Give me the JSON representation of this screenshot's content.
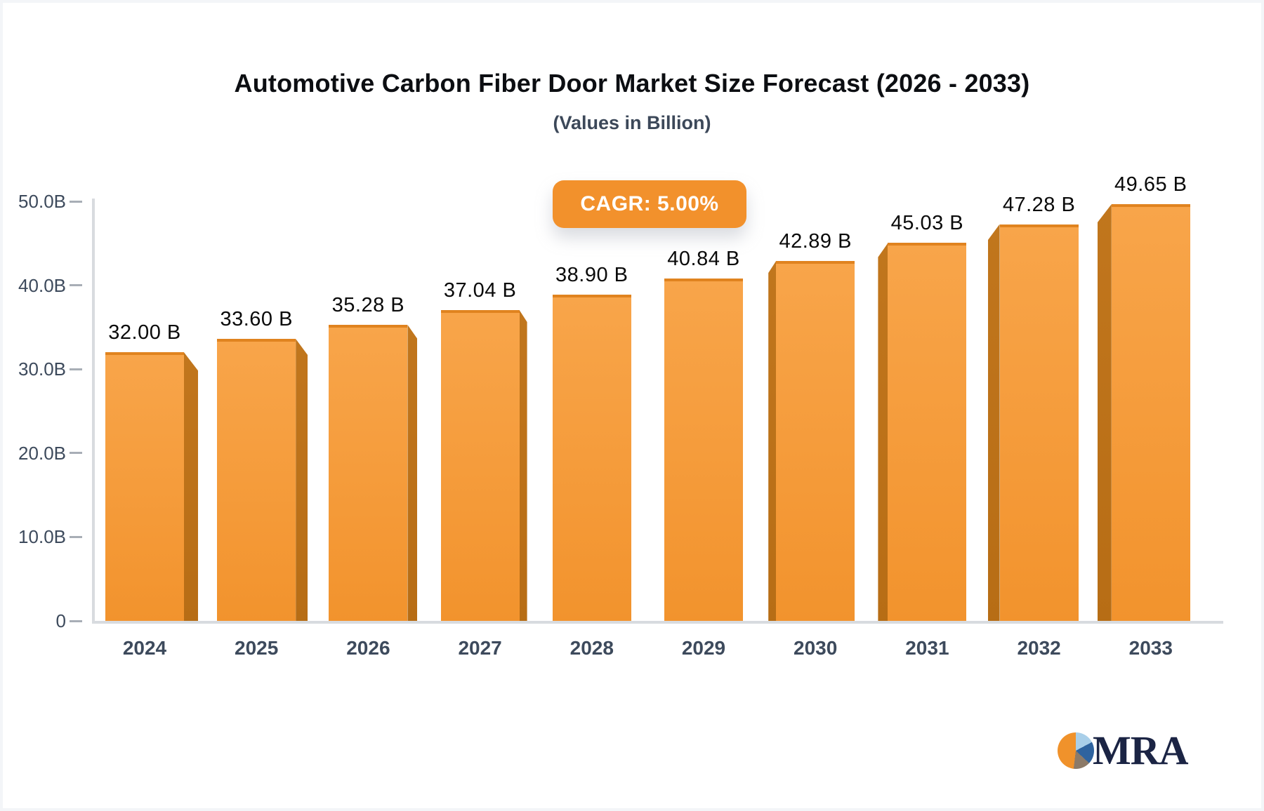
{
  "header": {
    "title": "Automotive Carbon Fiber Door Market Size Forecast (2026 - 2033)",
    "subtitle": "(Values in Billion)"
  },
  "badge": {
    "label": "CAGR: 5.00%",
    "bg": "#f2912c",
    "text_color": "#ffffff"
  },
  "chart_data": {
    "type": "bar",
    "title": "Automotive Carbon Fiber Door Market Size Forecast (2026 - 2033)",
    "subtitle": "(Values in Billion)",
    "categories": [
      "2024",
      "2025",
      "2026",
      "2027",
      "2028",
      "2029",
      "2030",
      "2031",
      "2032",
      "2033"
    ],
    "values": [
      32.0,
      33.6,
      35.28,
      37.04,
      38.9,
      40.84,
      42.89,
      45.03,
      47.28,
      49.65
    ],
    "value_labels": [
      "32.00 B",
      "33.60 B",
      "35.28 B",
      "37.04 B",
      "38.90 B",
      "40.84 B",
      "42.89 B",
      "45.03 B",
      "47.28 B",
      "49.65 B"
    ],
    "ytick_labels": [
      "0",
      "10.0B",
      "20.0B",
      "30.0B",
      "40.0B",
      "50.0B"
    ],
    "ytick_values": [
      0,
      10,
      20,
      30,
      40,
      50
    ],
    "ylim": [
      0,
      50
    ],
    "xlabel": "",
    "ylabel": "",
    "grid": false,
    "legend_position": "none",
    "annotation": "CAGR: 5.00%",
    "colors": {
      "bar_face_top": "#f8a54a",
      "bar_face_bottom": "#f2932d",
      "bar_top_edge": "#e0831f",
      "bar_side_top": "#c1761d",
      "bar_side_bottom": "#b76d15",
      "axis_line": "#d8dbdf",
      "tick_dash": "#a8aeb6",
      "tick_text": "#3d4a5c",
      "value_text": "#0a0a0a"
    }
  },
  "logo": {
    "text": "MRA",
    "pie_colors": {
      "light_blue": "#a9cfe9",
      "dark_blue": "#2e639f",
      "gray": "#8c7a68",
      "orange": "#f0922b"
    }
  }
}
